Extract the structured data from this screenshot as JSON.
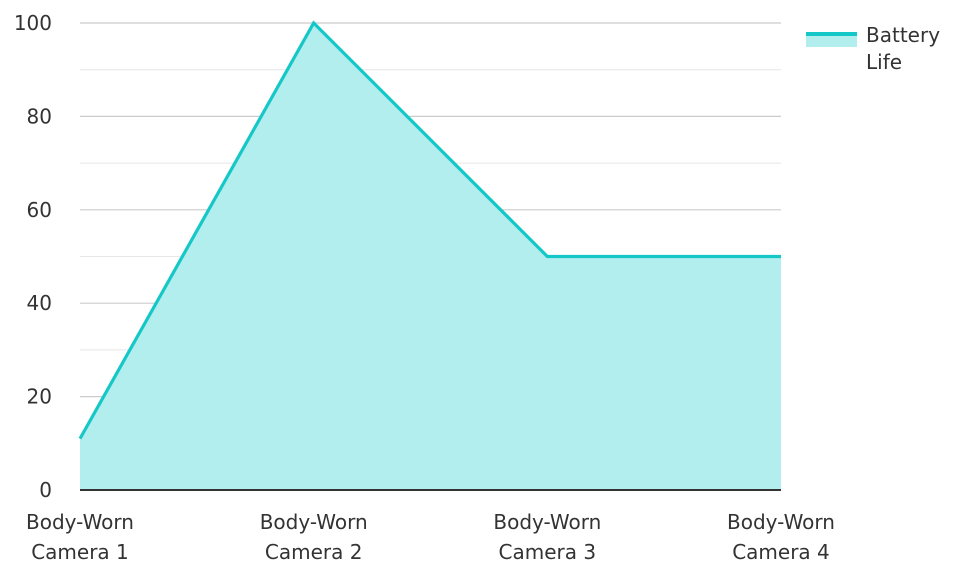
{
  "chart_data": {
    "type": "area",
    "title": "",
    "xlabel": "",
    "ylabel": "",
    "categories": [
      [
        "Body-Worn",
        "Camera 1"
      ],
      [
        "Body-Worn",
        "Camera 2"
      ],
      [
        "Body-Worn",
        "Camera 3"
      ],
      [
        "Body-Worn",
        "Camera 4"
      ]
    ],
    "series": [
      {
        "name": "Battery Life",
        "name_lines": [
          "Battery",
          "Life"
        ],
        "values": [
          11,
          100,
          50,
          50
        ],
        "line_color": "#16c7c7",
        "fill_color": "#b2eeee"
      }
    ],
    "ylim": [
      0,
      100
    ],
    "yticks": [
      0,
      20,
      40,
      60,
      80,
      100
    ],
    "grid": true,
    "legend_position": "top-right"
  }
}
